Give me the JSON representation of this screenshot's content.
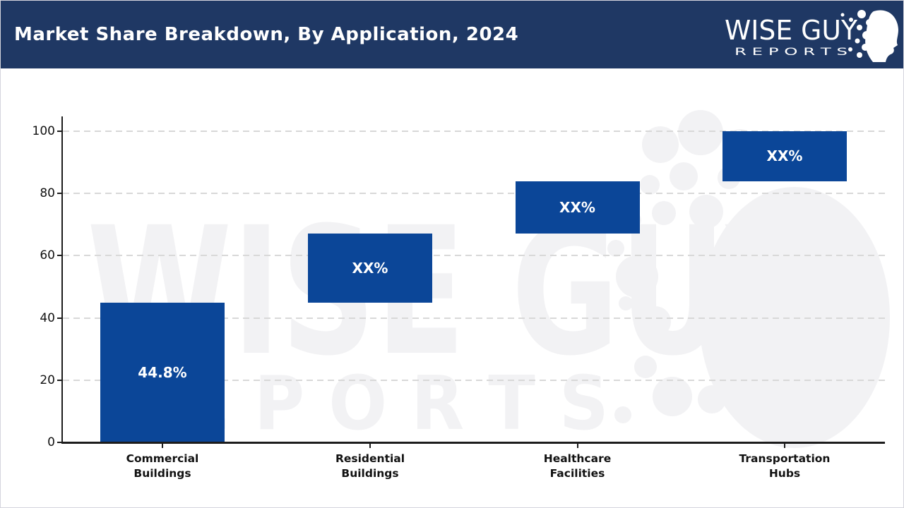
{
  "header": {
    "title": "Market Share Breakdown, By Application, 2024",
    "bg_color": "#1f3864",
    "logo": {
      "line1": "WISE GUY",
      "line2": "R E P O R T S"
    }
  },
  "watermark": {
    "line1": "WISE GUY",
    "line2": "R E P O R T S"
  },
  "chart_data": {
    "type": "bar",
    "subtype": "waterfall",
    "title": "Market Share Breakdown, By Application, 2024",
    "categories": [
      "Commercial Buildings",
      "Residential Buildings",
      "Healthcare Facilities",
      "Transportation Hubs"
    ],
    "segments": [
      {
        "category": "Commercial Buildings",
        "start": 0,
        "end": 44.8,
        "label": "44.8%"
      },
      {
        "category": "Residential Buildings",
        "start": 44.8,
        "end": 67.2,
        "label": "XX%"
      },
      {
        "category": "Healthcare Facilities",
        "start": 67.2,
        "end": 84.0,
        "label": "XX%"
      },
      {
        "category": "Transportation Hubs",
        "start": 84.0,
        "end": 100.0,
        "label": "XX%"
      }
    ],
    "bar_color": "#0b4698",
    "bar_label_color": "#ffffff",
    "ylim": [
      0,
      100
    ],
    "yticks": [
      "0",
      "20",
      "40",
      "60",
      "80",
      "100"
    ],
    "grid": "horizontal dashed",
    "legend": "none"
  }
}
